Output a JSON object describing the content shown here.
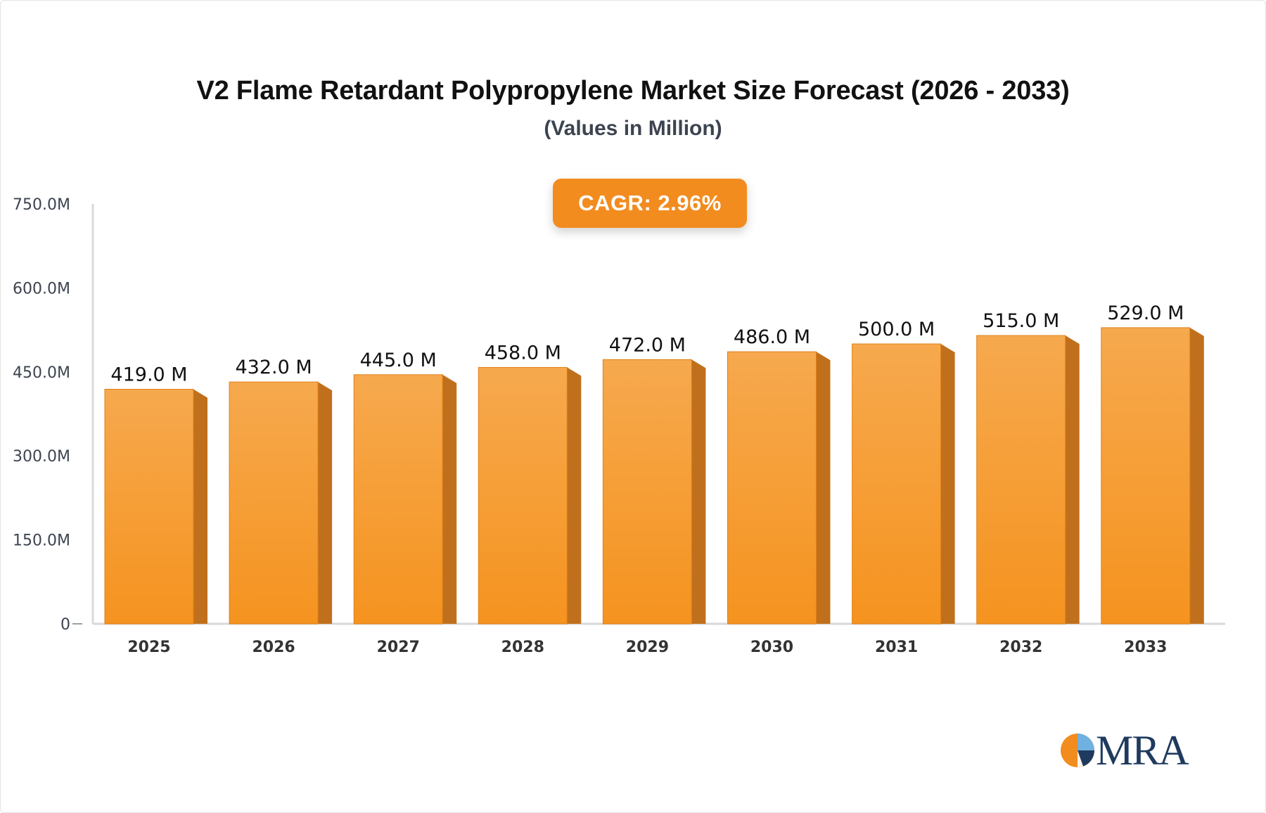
{
  "chart_data": {
    "type": "bar",
    "title": "V2 Flame Retardant Polypropylene Market Size Forecast (2026 - 2033)",
    "subtitle": "(Values in Million)",
    "categories": [
      "2025",
      "2026",
      "2027",
      "2028",
      "2029",
      "2030",
      "2031",
      "2032",
      "2033"
    ],
    "values": [
      419.0,
      432.0,
      445.0,
      458.0,
      472.0,
      486.0,
      500.0,
      515.0,
      529.0
    ],
    "data_labels": [
      "419.0 M",
      "432.0 M",
      "445.0 M",
      "458.0 M",
      "472.0 M",
      "486.0 M",
      "500.0 M",
      "515.0 M",
      "529.0 M"
    ],
    "y_ticks": [
      0,
      150,
      300,
      450,
      600,
      750
    ],
    "y_tick_labels": [
      "0",
      "150.0M",
      "300.0M",
      "450.0M",
      "600.0M",
      "750.0M"
    ],
    "ylim": [
      0,
      750
    ],
    "xlabel": "",
    "ylabel": "",
    "grid": false,
    "legend": "none",
    "bar_color": "#f5931f",
    "bar_color_light": "#f6a94e",
    "bar_side_color": "#c0701c"
  },
  "cagr": {
    "label": "CAGR:",
    "value": "2.96%"
  },
  "logo": {
    "text": "MRA"
  },
  "colors": {
    "axis": "#d9d9d9",
    "badge": "#f28c1f",
    "title": "#111111",
    "subtitle": "#3d4450"
  }
}
